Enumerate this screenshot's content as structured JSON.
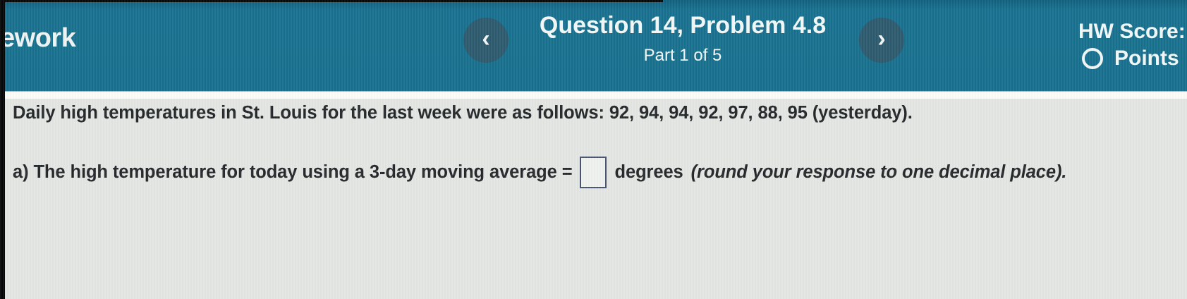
{
  "header": {
    "assignment_label": "ework",
    "title": "Question 14, Problem 4.8",
    "subtitle": "Part 1 of 5",
    "prev_icon": "‹",
    "next_icon": "›",
    "hw_score_label": "HW Score:",
    "points_label": "Points"
  },
  "question": {
    "statement": "Daily high temperatures in St. Louis for the last week were as follows: 92, 94, 94, 92, 97, 88, 95 (yesterday).",
    "part_a": {
      "prefix": "a) The high temperature for today using a 3-day moving average =",
      "answer_value": "",
      "unit_label": "degrees",
      "note": "(round your response to one decimal place)."
    }
  },
  "colors": {
    "header_teal": "#17708E",
    "nav_button_fill": "#2D5A6E",
    "header_text": "#F2F8F7",
    "content_background": "#E4E6E3",
    "body_text": "#24282B",
    "answer_box_border": "#4A5470"
  }
}
